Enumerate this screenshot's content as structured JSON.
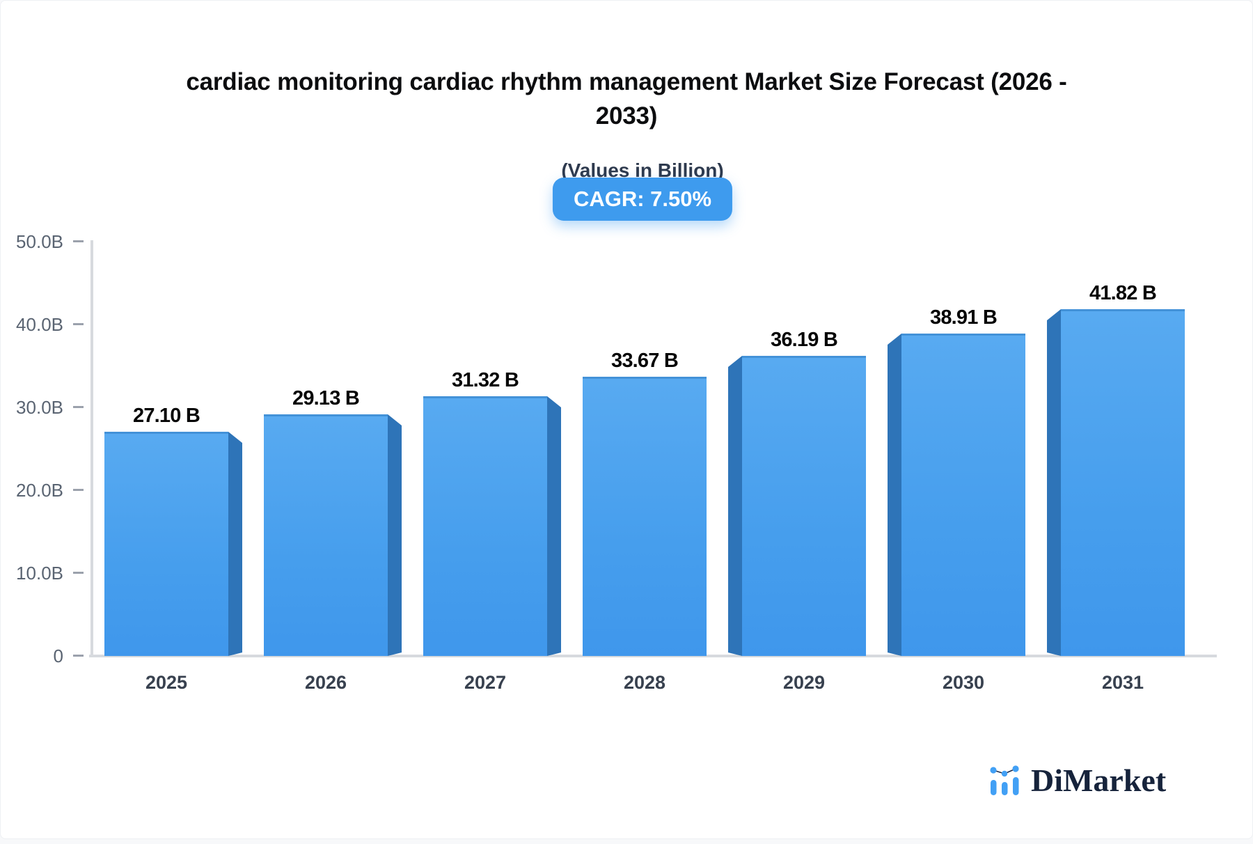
{
  "header": {
    "title_line1": "cardiac monitoring cardiac rhythm management Market Size Forecast (2026 -",
    "title_line2": "2033)",
    "subtitle": "(Values in Billion)",
    "cagr_badge": "CAGR: 7.50%"
  },
  "chart_data": {
    "type": "bar",
    "title": "cardiac monitoring cardiac rhythm management Market Size Forecast (2026 - 2033)",
    "subtitle": "(Values in Billion)",
    "cagr": "7.50%",
    "categories": [
      "2025",
      "2026",
      "2027",
      "2028",
      "2029",
      "2030",
      "2031"
    ],
    "values": [
      27.1,
      29.13,
      31.32,
      33.67,
      36.19,
      38.91,
      41.82
    ],
    "value_labels": [
      "27.10 B",
      "29.13 B",
      "31.32 B",
      "33.67 B",
      "36.19 B",
      "38.91 B",
      "41.82 B"
    ],
    "xlabel": "",
    "ylabel": "",
    "ylim": [
      0,
      50
    ],
    "yticks": [
      0,
      10,
      20,
      30,
      40,
      50
    ],
    "ytick_labels": [
      "0",
      "10.0B",
      "20.0B",
      "30.0B",
      "40.0B",
      "50.0B"
    ],
    "grid": false,
    "legend": false
  },
  "colors": {
    "accent_blue": "#3e9bee",
    "bar_face_top": "#58aaf1",
    "bar_face_bottom": "#3f97ec",
    "bar_side": "#2e74b8",
    "axis_line": "#d7dade",
    "ytick_text": "#5a6472",
    "xtick_text": "#38414f",
    "title_text": "#0c0d0f",
    "subtitle_text": "#2e3a4e",
    "logo_blue": "#42a0f5",
    "logo_navy": "#16233b"
  },
  "footer": {
    "logo_text": "DiMarket",
    "logo_icon": "bar-chart-line-icon"
  }
}
